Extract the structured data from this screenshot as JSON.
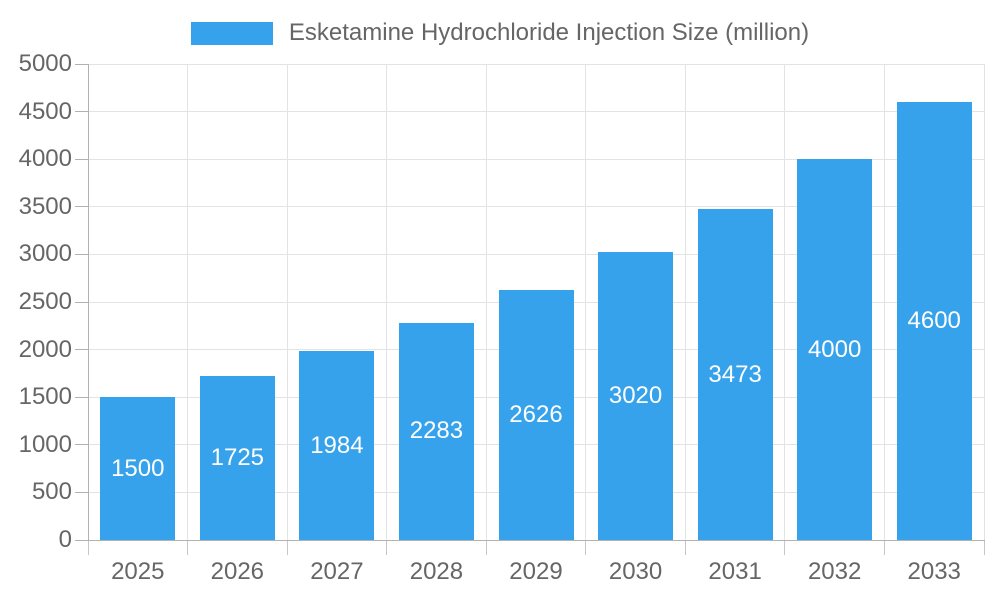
{
  "chart_data": {
    "type": "bar",
    "title": "",
    "legend": {
      "position": "top",
      "label": "Esketamine Hydrochloride Injection Size (million)"
    },
    "categories": [
      "2025",
      "2026",
      "2027",
      "2028",
      "2029",
      "2030",
      "2031",
      "2032",
      "2033"
    ],
    "series": [
      {
        "name": "Esketamine Hydrochloride Injection Size (million)",
        "values": [
          1500,
          1725,
          1984,
          2283,
          2626,
          3020,
          3473,
          4000,
          4600
        ]
      }
    ],
    "data_labels": [
      "1500",
      "1725",
      "1984",
      "2283",
      "2626",
      "3020",
      "3473",
      "4000",
      "4600"
    ],
    "xlabel": "",
    "ylabel": "",
    "ylim": [
      0,
      5000
    ],
    "ytick_step": 500,
    "yticks": [
      0,
      500,
      1000,
      1500,
      2000,
      2500,
      3000,
      3500,
      4000,
      4500,
      5000
    ],
    "grid": true,
    "colors": {
      "bar": "#36A2EB",
      "bar_value_label": "#ffffff",
      "axis_text": "#666666",
      "legend_text": "#666666",
      "grid_line": "#e3e3e3",
      "axis_line": "#b1b1b1",
      "background": "#ffffff"
    }
  }
}
